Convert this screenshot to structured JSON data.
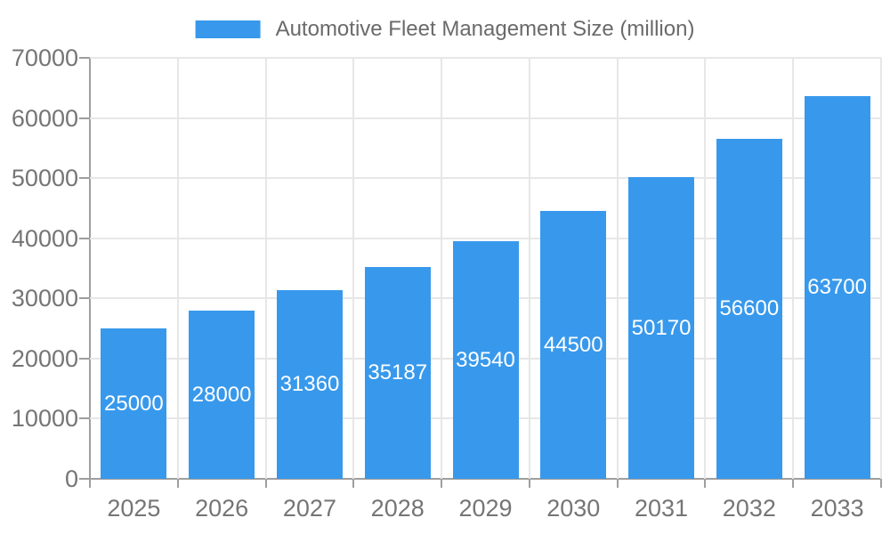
{
  "chart_data": {
    "type": "bar",
    "title": "",
    "legend": [
      "Automotive Fleet Management Size (million)"
    ],
    "legend_position": "top",
    "categories": [
      "2025",
      "2026",
      "2027",
      "2028",
      "2029",
      "2030",
      "2031",
      "2032",
      "2033"
    ],
    "values": [
      25000,
      28000,
      31360,
      35187,
      39540,
      44500,
      50170,
      56600,
      63700
    ],
    "bar_labels": [
      "25000",
      "28000",
      "31360",
      "35187",
      "39540",
      "44500",
      "50170",
      "56600",
      "63700"
    ],
    "xlabel": "",
    "ylabel": "",
    "ylim": [
      0,
      70000
    ],
    "yticks": [
      0,
      10000,
      20000,
      30000,
      40000,
      50000,
      60000,
      70000
    ],
    "grid": true,
    "colors": {
      "bar": "#3899EC",
      "axis": "#9E9E9E",
      "grid": "#E7E7E7",
      "tick_label": "#757575",
      "legend_label": "#6A6A6A",
      "bar_label": "#FFFFFF",
      "background": "#FFFFFF"
    }
  }
}
